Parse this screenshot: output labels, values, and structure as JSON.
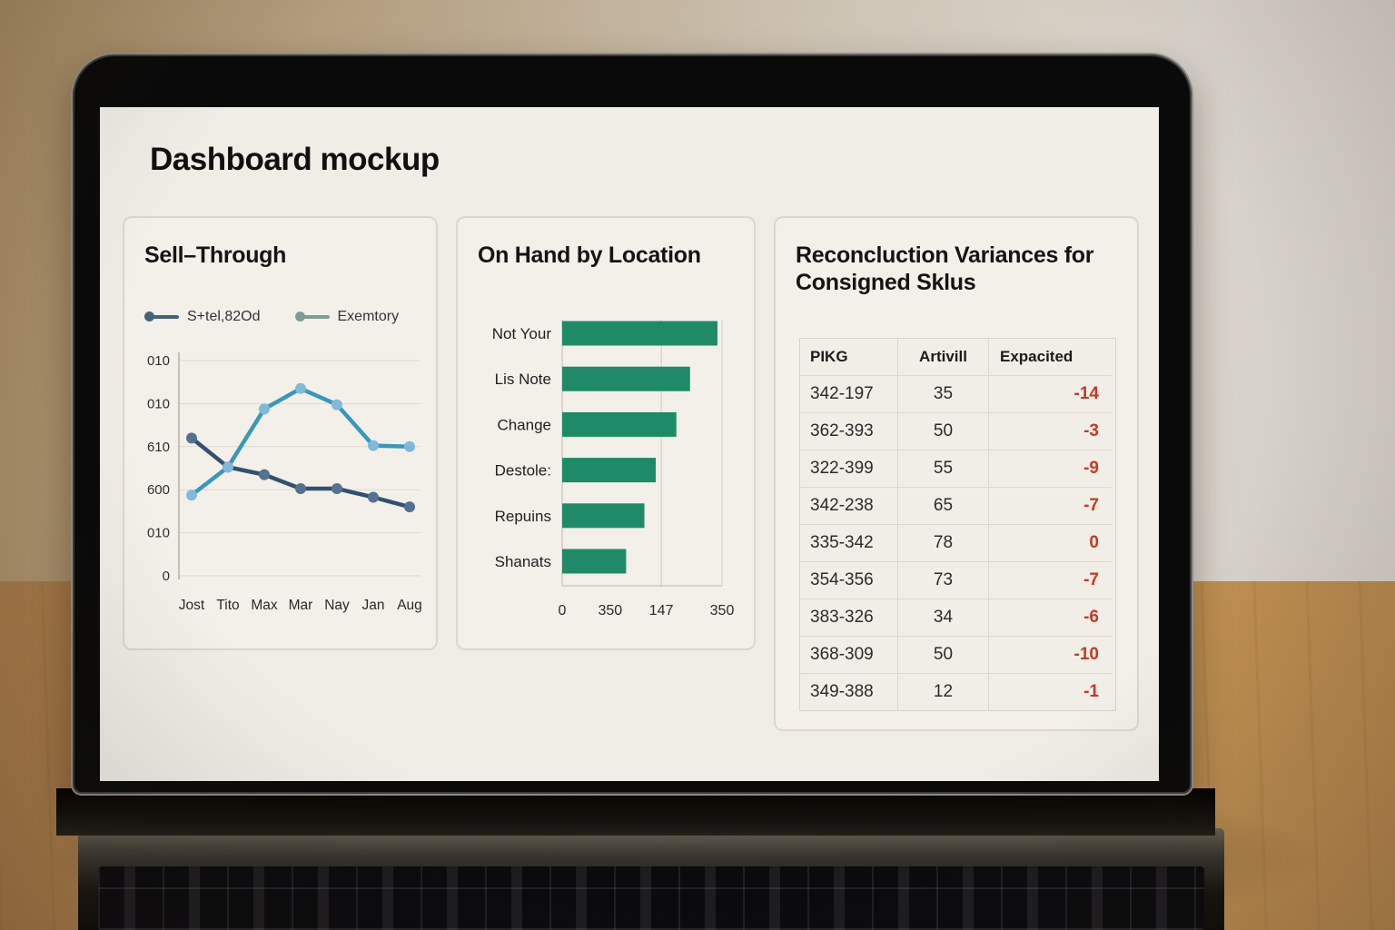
{
  "page_title": "Dashboard mockup",
  "panels": {
    "sell_through": {
      "title": "Sell–Through"
    },
    "on_hand": {
      "title": "On Hand by Location"
    },
    "reconciliation": {
      "title": "Reconcluction Variances for Consigned Sklus"
    }
  },
  "chart_data": [
    {
      "type": "line",
      "title": "Sell–Through",
      "x": [
        "Jost",
        "Tito",
        "Max",
        "Mar",
        "Nay",
        "Jan",
        "Aug"
      ],
      "series": [
        {
          "name": "S+tel,82Od",
          "color": "#33506e",
          "marker_color": "#54718f",
          "legend_color": "#44617f",
          "values": [
            640,
            505,
            470,
            405,
            405,
            365,
            320
          ]
        },
        {
          "name": "Exemtory",
          "color": "#3a96ba",
          "marker_color": "#82b8d9",
          "legend_color": "#7f9d95",
          "values": [
            375,
            505,
            775,
            870,
            795,
            605,
            600
          ]
        }
      ],
      "ylim": [
        0,
        1000
      ],
      "ytick_labels_bottom_to_top": [
        "0",
        "010",
        "600",
        "610",
        "010",
        "010"
      ],
      "grid": true,
      "legend_position": "top"
    },
    {
      "type": "bar",
      "title": "On Hand by Location",
      "orientation": "horizontal",
      "categories": [
        "Not Your",
        "Lis Note",
        "Change",
        "Destole:",
        "Repuins",
        "Shanats"
      ],
      "values": [
        340,
        280,
        250,
        205,
        180,
        140
      ],
      "xlim": [
        0,
        350
      ],
      "xticks": [
        {
          "label": "0",
          "pos": 0
        },
        {
          "label": "350",
          "pos": 0.3
        },
        {
          "label": "147",
          "pos": 0.62
        },
        {
          "label": "350",
          "pos": 1
        }
      ],
      "bar_color": "#1f8a68"
    },
    {
      "type": "table",
      "title": "Reconcluction Variances for Consigned Sklus",
      "columns": [
        "PIKG",
        "Artivill",
        "Expacited"
      ],
      "rows": [
        [
          "342-197",
          "35",
          "-14"
        ],
        [
          "362-393",
          "50",
          "-3"
        ],
        [
          "322-399",
          "55",
          "-9"
        ],
        [
          "342-238",
          "65",
          "-7"
        ],
        [
          "335-342",
          "78",
          "0"
        ],
        [
          "354-356",
          "73",
          "-7"
        ],
        [
          "383-326",
          "34",
          "-6"
        ],
        [
          "368-309",
          "50",
          "-10"
        ],
        [
          "349-388",
          "12",
          "-1"
        ]
      ],
      "variance_color": "#c13a2a"
    }
  ]
}
